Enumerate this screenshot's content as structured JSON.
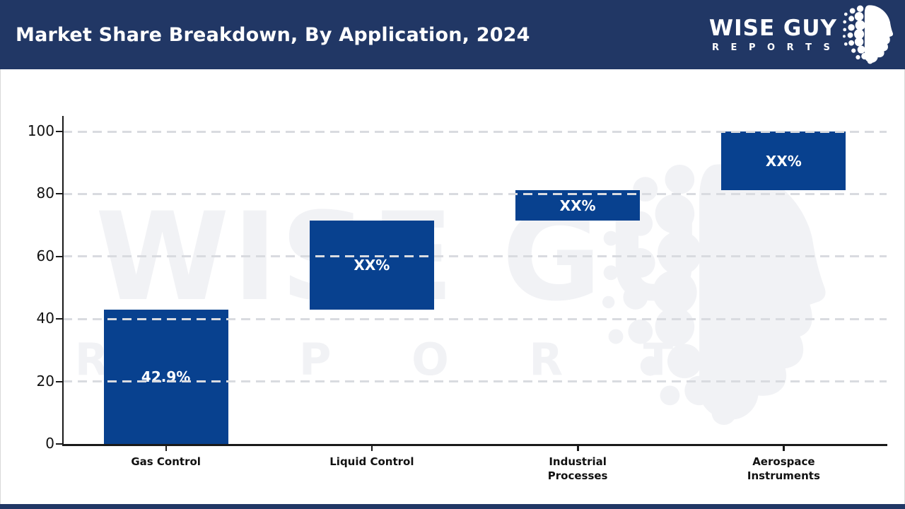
{
  "header": {
    "title": "Market Share Breakdown, By Application, 2024",
    "logo": {
      "line1": "WISE GUY",
      "line2": "R E P O R T S"
    }
  },
  "watermark": {
    "line1": "WISE GUY",
    "line2": "R E P O R T S"
  },
  "chart_data": {
    "type": "bar",
    "subtype": "floating-segment-waterfall",
    "title": "Market Share Breakdown, By Application, 2024",
    "categories": [
      "Gas Control",
      "Liquid Control",
      "Industrial Processes",
      "Aerospace Instruments"
    ],
    "segments": [
      {
        "category": "Gas Control",
        "start": 0,
        "end": 42.9,
        "label": "42.9%"
      },
      {
        "category": "Liquid Control",
        "start": 42.9,
        "end": 71.5,
        "label": "XX%"
      },
      {
        "category": "Industrial Processes",
        "start": 71.5,
        "end": 81.2,
        "label": "XX%"
      },
      {
        "category": "Aerospace Instruments",
        "start": 81.2,
        "end": 100,
        "label": "XX%"
      }
    ],
    "ylim": [
      0,
      100
    ],
    "yticks": [
      0,
      20,
      40,
      60,
      80,
      100
    ],
    "xlabel": "",
    "ylabel": "",
    "grid": "horizontal-dashed",
    "legend": "none",
    "colors": {
      "bar": "#08418f",
      "bar_label": "#ffffff",
      "grid": "#d9dbe0",
      "axis": "#1a1a1a",
      "header_bg": "#213765",
      "watermark": "#f1f2f5"
    }
  }
}
